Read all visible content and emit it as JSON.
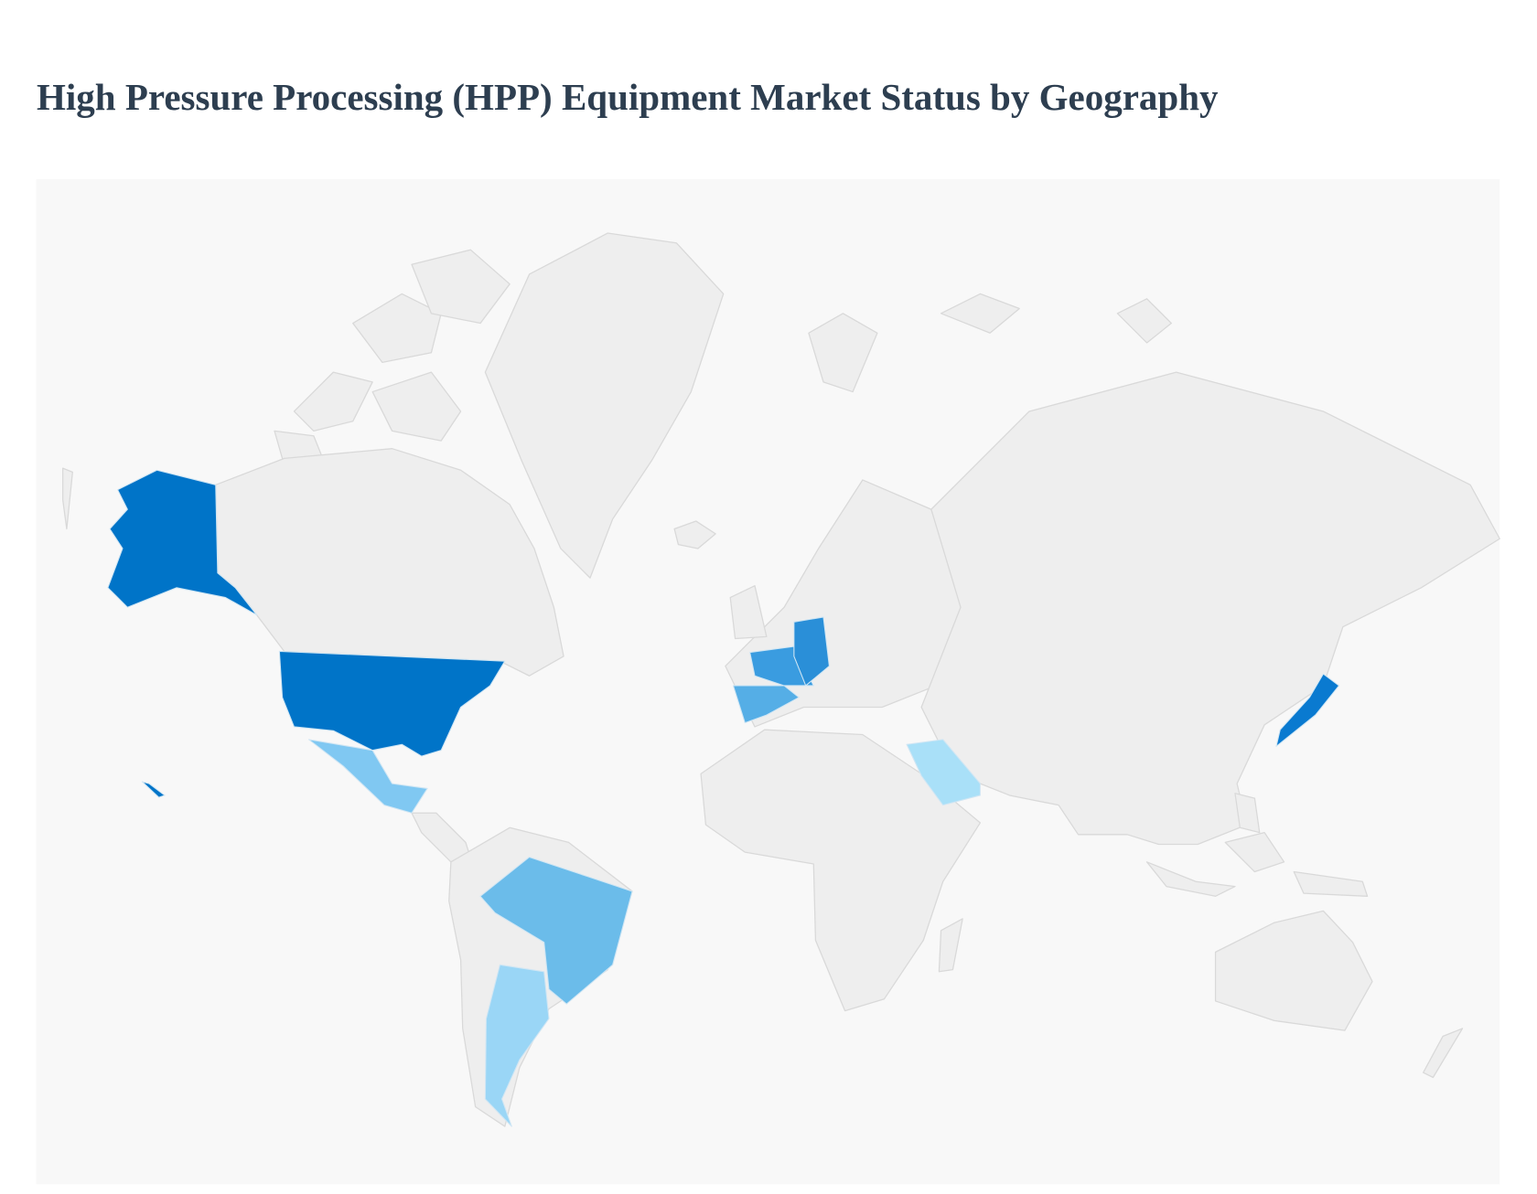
{
  "title": "High Pressure Processing (HPP) Equipment Market Status by Geography"
}
